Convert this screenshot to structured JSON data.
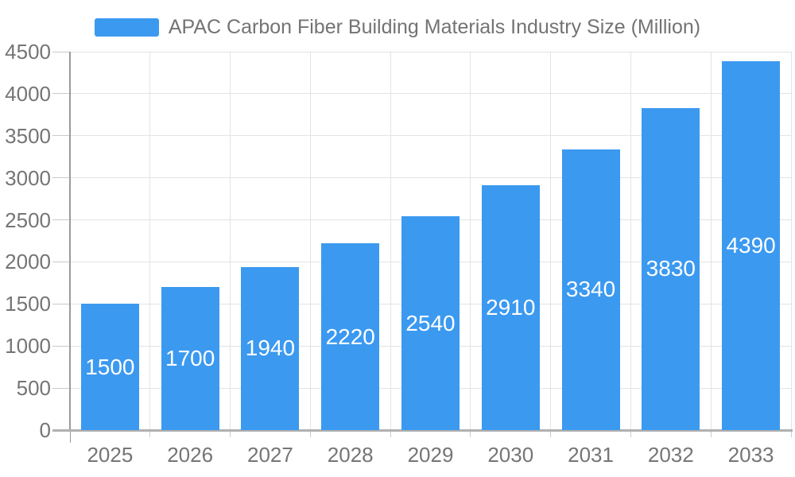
{
  "chart_data": {
    "type": "bar",
    "title": "APAC Carbon Fiber Building Materials Industry Size (Million)",
    "legend_position": "top",
    "categories": [
      "2025",
      "2026",
      "2027",
      "2028",
      "2029",
      "2030",
      "2031",
      "2032",
      "2033"
    ],
    "series": [
      {
        "name": "APAC Carbon Fiber Building Materials Industry Size (Million)",
        "values": [
          1500,
          1700,
          1940,
          2220,
          2540,
          2910,
          3340,
          3830,
          4390
        ]
      }
    ],
    "value_labels": [
      "1500",
      "1700",
      "1940",
      "2220",
      "2540",
      "2910",
      "3340",
      "3830",
      "4390"
    ],
    "xlabel": "",
    "ylabel": "",
    "ylim": [
      0,
      4500
    ],
    "ytick_step": 500,
    "ytick_labels": [
      "0",
      "500",
      "1000",
      "1500",
      "2000",
      "2500",
      "3000",
      "3500",
      "4000",
      "4500"
    ],
    "grid": {
      "horizontal": true,
      "vertical": true
    },
    "colors": {
      "bar": "#3B99F0",
      "value_label": "#FFFFFF",
      "axis_text": "#757575",
      "legend_text": "#737373",
      "grid": "#E3E3E3",
      "axis_line_y": "#9B9B9B",
      "axis_line_x": "#B0B0B0",
      "tick": "#C9C9C9",
      "background": "#FFFFFF"
    }
  }
}
